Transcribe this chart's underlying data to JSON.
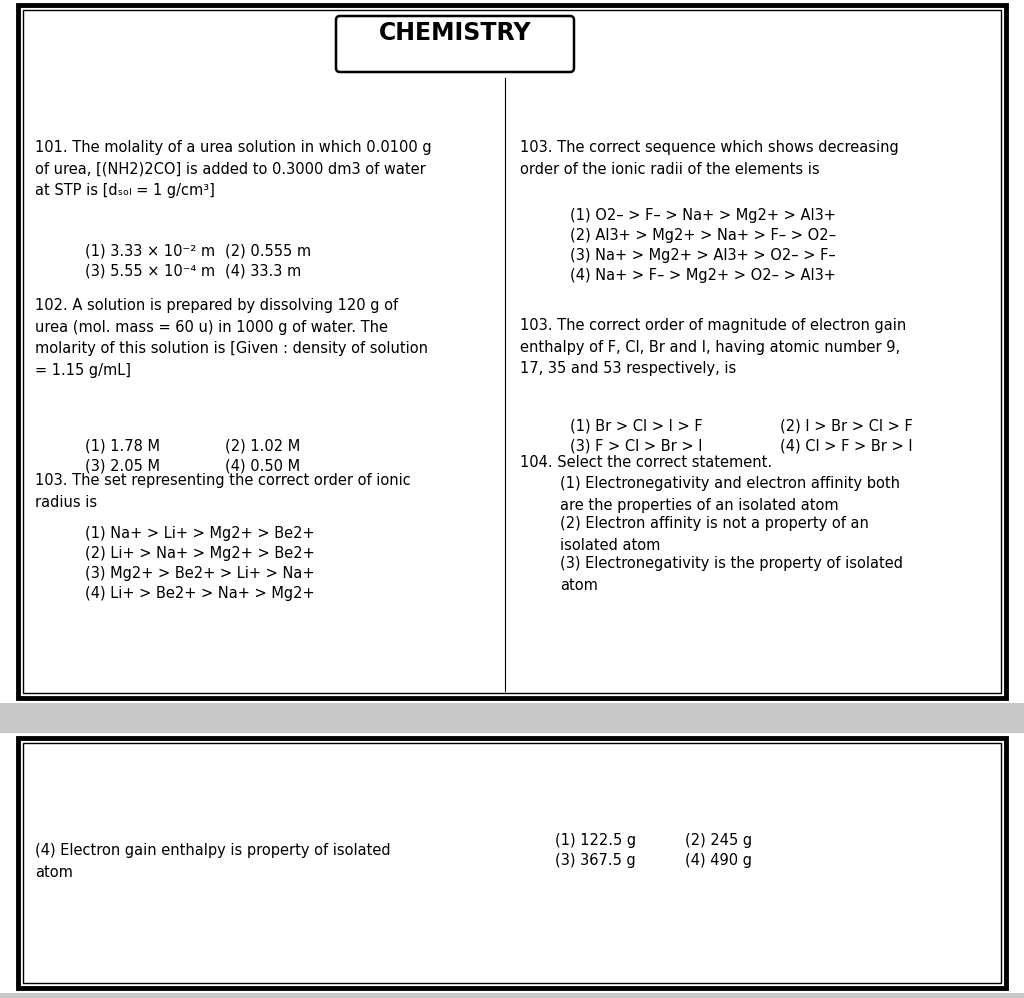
{
  "title": "CHEMISTRY",
  "bg_color": "#c8c8c8",
  "page1_bg": "#ffffff",
  "page2_bg": "#ffffff",
  "text_color": "#000000",
  "fs": 10.5,
  "title_fs": 17,
  "page1": {
    "left": {
      "q101": "101. The molality of a urea solution in which 0.0100 g\nof urea, [(NH2)2CO] is added to 0.3000 dm3 of water\nat STP is [dₛₒₗ = 1 g/cm³]",
      "q101_opts": [
        "(1) 3.33 × 10⁻² m",
        "(2) 0.555 m",
        "(3) 5.55 × 10⁻⁴ m",
        "(4) 33.3 m"
      ],
      "q102": "102. A solution is prepared by dissolving 120 g of\nurea (mol. mass = 60 u) in 1000 g of water. The\nmolarity of this solution is [Given : density of solution\n= 1.15 g/mL]",
      "q102_opts": [
        "(1) 1.78 M",
        "(2) 1.02 M",
        "(3) 2.05 M",
        "(4) 0.50 M"
      ],
      "q103": "103. The set representing the correct order of ionic\nradius is",
      "q103_opts": [
        "(1) Na+ > Li+ > Mg2+ > Be2+",
        "(2) Li+ > Na+ > Mg2+ > Be2+",
        "(3) Mg2+ > Be2+ > Li+ > Na+",
        "(4) Li+ > Be2+ > Na+ > Mg2+"
      ]
    },
    "right": {
      "q103a": "103. The correct sequence which shows decreasing\norder of the ionic radii of the elements is",
      "q103a_opts": [
        "(1) O2– > F– > Na+ > Mg2+ > Al3+",
        "(2) Al3+ > Mg2+ > Na+ > F– > O2–",
        "(3) Na+ > Mg2+ > Al3+ > O2– > F–",
        "(4) Na+ > F– > Mg2+ > O2– > Al3+"
      ],
      "q103b": "103. The correct order of magnitude of electron gain\nenthalpy of F, Cl, Br and I, having atomic number 9,\n17, 35 and 53 respectively, is",
      "q103b_opts": [
        "(1) Br > Cl > I > F",
        "(2) I > Br > Cl > F",
        "(3) F > Cl > Br > I",
        "(4) Cl > F > Br > I"
      ],
      "q104": "104. Select the correct statement.",
      "q104_opts": [
        "(1) Electronegativity and electron affinity both\nare the properties of an isolated atom",
        "(2) Electron affinity is not a property of an\nisolated atom",
        "(3) Electronegativity is the property of isolated\natom"
      ]
    }
  },
  "page2": {
    "left": "(4) Electron gain enthalpy is property of isolated\natom",
    "right_row1": [
      "(1) 122.5 g",
      "(2) 245 g"
    ],
    "right_row2": [
      "(3) 367.5 g",
      "(4) 490 g"
    ]
  }
}
